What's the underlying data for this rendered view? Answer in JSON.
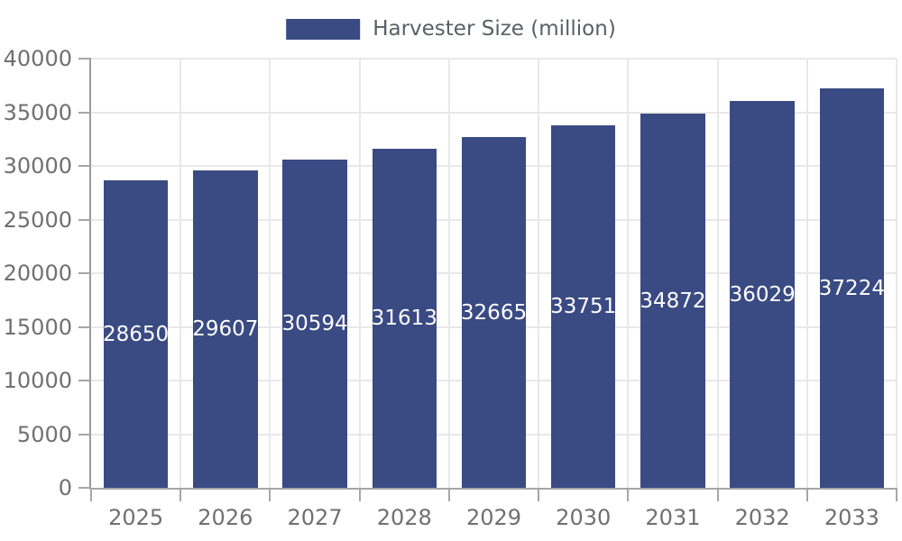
{
  "chart_data": {
    "type": "bar",
    "title": "Harvester Size (million)",
    "categories": [
      "2025",
      "2026",
      "2027",
      "2028",
      "2029",
      "2030",
      "2031",
      "2032",
      "2033"
    ],
    "series": [
      {
        "name": "Harvester Size (million)",
        "color": "#3A4A82",
        "values": [
          28650,
          29607,
          30594,
          31613,
          32665,
          33751,
          34872,
          36029,
          37224
        ]
      }
    ],
    "xlabel": "",
    "ylabel": "",
    "ylim": [
      0,
      40000
    ],
    "ytick_step": 5000,
    "ytick_labels": [
      "0",
      "5000",
      "10000",
      "15000",
      "20000",
      "25000",
      "30000",
      "35000",
      "40000"
    ],
    "grid": true,
    "legend_position": "top-center",
    "value_label_position": "inside-center",
    "value_label_color": "#ffffff",
    "grid_color": "#e8e8e8",
    "axis_color": "#a6a6a6",
    "tick_label_color": "#707070",
    "legend_text_color": "#5a5e66",
    "background_color": "#ffffff"
  }
}
